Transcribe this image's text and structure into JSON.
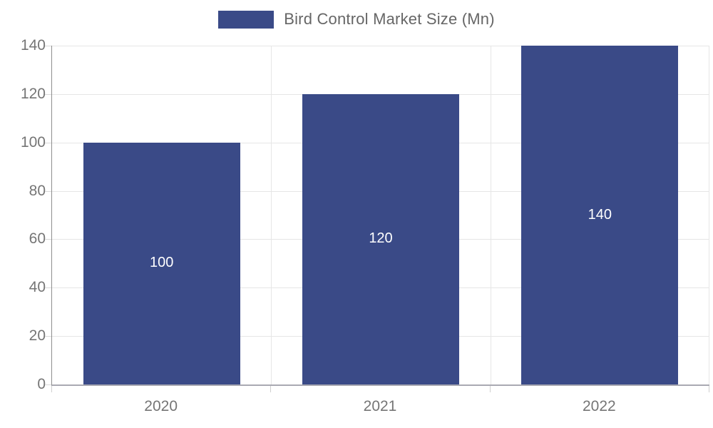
{
  "legend": {
    "series_label": "Bird Control Market Size (Mn)",
    "swatch_color": "#3a4a87"
  },
  "chart_data": {
    "type": "bar",
    "title": "Bird Control Market Size (Mn)",
    "categories": [
      "2020",
      "2021",
      "2022"
    ],
    "values": [
      100,
      120,
      140
    ],
    "value_labels": [
      "100",
      "120",
      "140"
    ],
    "xlabel": "",
    "ylabel": "",
    "ylim": [
      0,
      140
    ],
    "yticks": [
      0,
      20,
      40,
      60,
      80,
      100,
      120,
      140
    ],
    "grid": true,
    "legend_position": "top-center",
    "bar_color": "#3a4a87",
    "value_label_color": "#ffffff",
    "axis_label_color": "#757575"
  }
}
